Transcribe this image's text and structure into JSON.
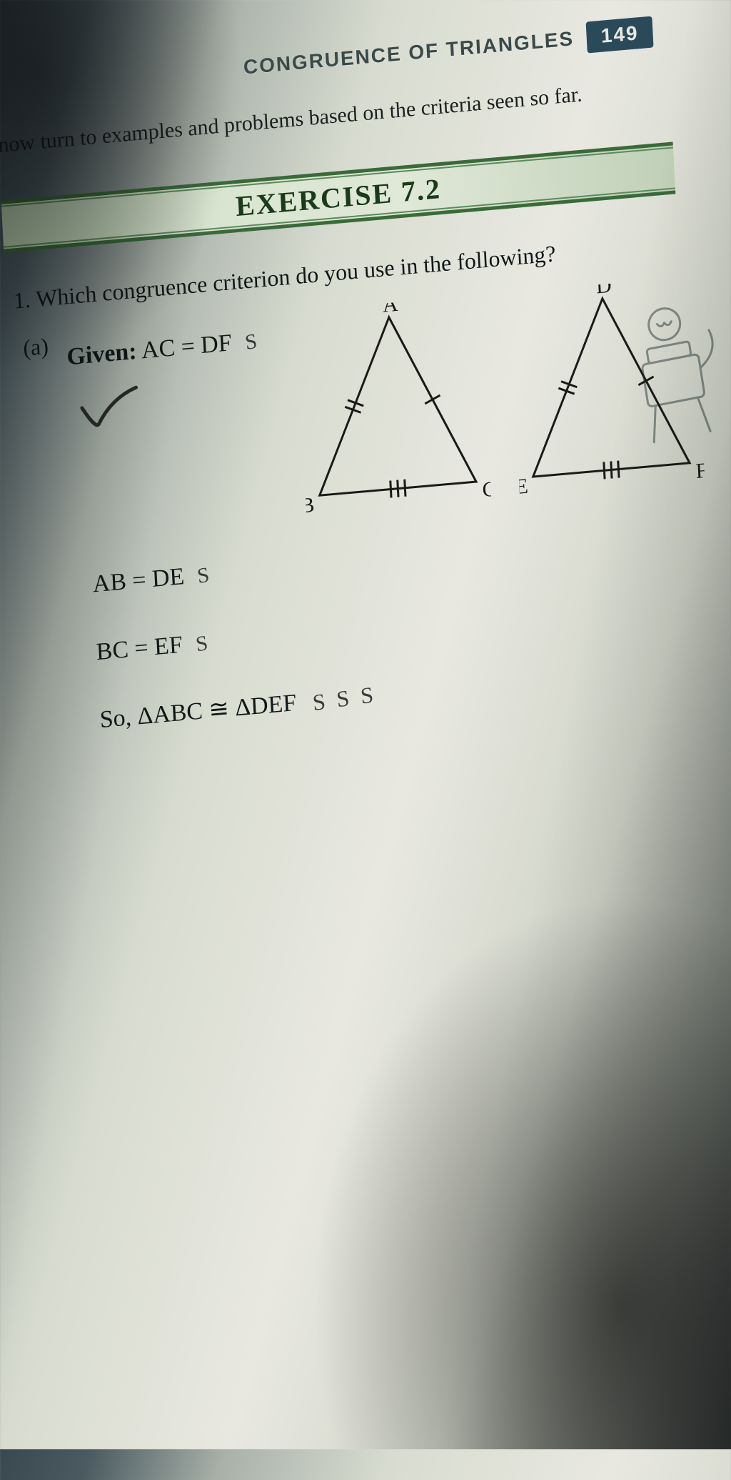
{
  "header": {
    "chapter_title": "CONGRUENCE OF TRIANGLES",
    "page_number": "149"
  },
  "intro_text": "now turn to examples and problems based on the criteria seen so far.",
  "exercise": {
    "label": "EXERCISE 7.2"
  },
  "question_1": {
    "stem": "Which congruence criterion do you use in the following?",
    "part_a": {
      "label": "(a)",
      "given_label": "Given:",
      "lines": {
        "l1": "AC = DF",
        "l2": "AB = DE",
        "l3": "BC = EF"
      },
      "conclusion": "So, ΔABC ≅ ΔDEF",
      "handwritten_marks": {
        "s1": "S",
        "s2": "S",
        "s3": "S",
        "answer": "S S S"
      }
    }
  },
  "figures": {
    "triangle1": {
      "vertices": {
        "A": "A",
        "B": "B",
        "C": "C"
      },
      "points": {
        "A": [
          130,
          20
        ],
        "B": [
          20,
          260
        ],
        "C": [
          240,
          260
        ]
      },
      "label_offsets": {
        "A": [
          -8,
          -8
        ],
        "B": [
          -28,
          22
        ],
        "C": [
          8,
          22
        ]
      },
      "tick_counts": {
        "AB": 2,
        "AC": 1,
        "BC": 3
      },
      "stroke": "#1a1a18",
      "label_fontsize": 30
    },
    "triangle2": {
      "vertices": {
        "D": "D",
        "E": "E",
        "F": "F"
      },
      "points": {
        "D": [
          130,
          20
        ],
        "E": [
          20,
          260
        ],
        "F": [
          240,
          260
        ]
      },
      "label_offsets": {
        "D": [
          -8,
          -8
        ],
        "E": [
          -26,
          22
        ],
        "F": [
          8,
          22
        ]
      },
      "tick_counts": {
        "DE": 2,
        "DF": 1,
        "EF": 3
      },
      "stroke": "#1a1a18",
      "label_fontsize": 30
    }
  },
  "colors": {
    "text": "#101818",
    "band_border": "#3a6a3a",
    "band_fill_start": "#b8d0b0",
    "band_fill_end": "#c0d0b8",
    "badge_bg": "#2a4a5a",
    "badge_fg": "#e8e8e0",
    "handwriting": "#3a3a38"
  }
}
